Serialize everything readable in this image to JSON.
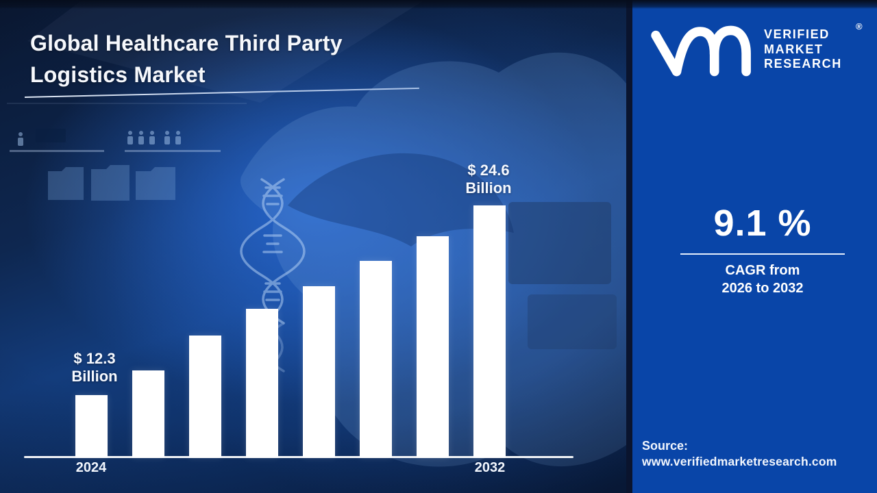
{
  "title": {
    "line1": "Global Healthcare Third Party",
    "line2": "Logistics Market"
  },
  "brand": {
    "monogram": "vm",
    "name_line1": "VERIFIED",
    "name_line2": "MARKET",
    "name_line3": "RESEARCH",
    "registered": "®"
  },
  "stat": {
    "value": "9.1 %",
    "caption_line1": "CAGR from",
    "caption_line2": "2026 to 2032"
  },
  "source": {
    "label": "Source:",
    "url": "www.verifiedmarketresearch.com"
  },
  "chart_data": {
    "type": "bar",
    "title": "Global Healthcare Third Party Logistics Market",
    "unit": "USD Billion",
    "ylim": [
      0,
      26
    ],
    "gridlines": false,
    "legend": "none",
    "bar_color": "#ffffff",
    "axis_color": "#ffffff",
    "x_axis_labels_visible": [
      "2024",
      "2032"
    ],
    "bars": [
      {
        "label": "2024",
        "value": 12.3,
        "value_text": "$ 12.3 Billion",
        "labeled": true,
        "height_rel": 0.247
      },
      {
        "label": "",
        "value": 13.9,
        "value_text": "",
        "labeled": false,
        "height_rel": 0.345
      },
      {
        "label": "",
        "value": 16.2,
        "value_text": "",
        "labeled": false,
        "height_rel": 0.484
      },
      {
        "label": "",
        "value": 17.9,
        "value_text": "",
        "labeled": false,
        "height_rel": 0.59
      },
      {
        "label": "",
        "value": 19.4,
        "value_text": "",
        "labeled": false,
        "height_rel": 0.679
      },
      {
        "label": "",
        "value": 21.0,
        "value_text": "",
        "labeled": false,
        "height_rel": 0.78
      },
      {
        "label": "",
        "value": 22.6,
        "value_text": "",
        "labeled": false,
        "height_rel": 0.878
      },
      {
        "label": "2032",
        "value": 24.6,
        "value_text": "$ 24.6 Billion",
        "labeled": true,
        "height_rel": 1.0
      }
    ],
    "annotations": [
      {
        "line1": "$ 12.3",
        "line2": "Billion",
        "bar_index": 0
      },
      {
        "line1": "$ 24.6",
        "line2": "Billion",
        "bar_index": 7
      }
    ],
    "note": "Only first and last bars carry value labels in the image; intermediate values estimated from bar heights."
  },
  "colors": {
    "panel_blue": "#0945a8",
    "background_navy": "#0c1f41",
    "divider_navy": "#0a142e",
    "bar_white": "#ffffff",
    "text_white": "#ffffff"
  }
}
